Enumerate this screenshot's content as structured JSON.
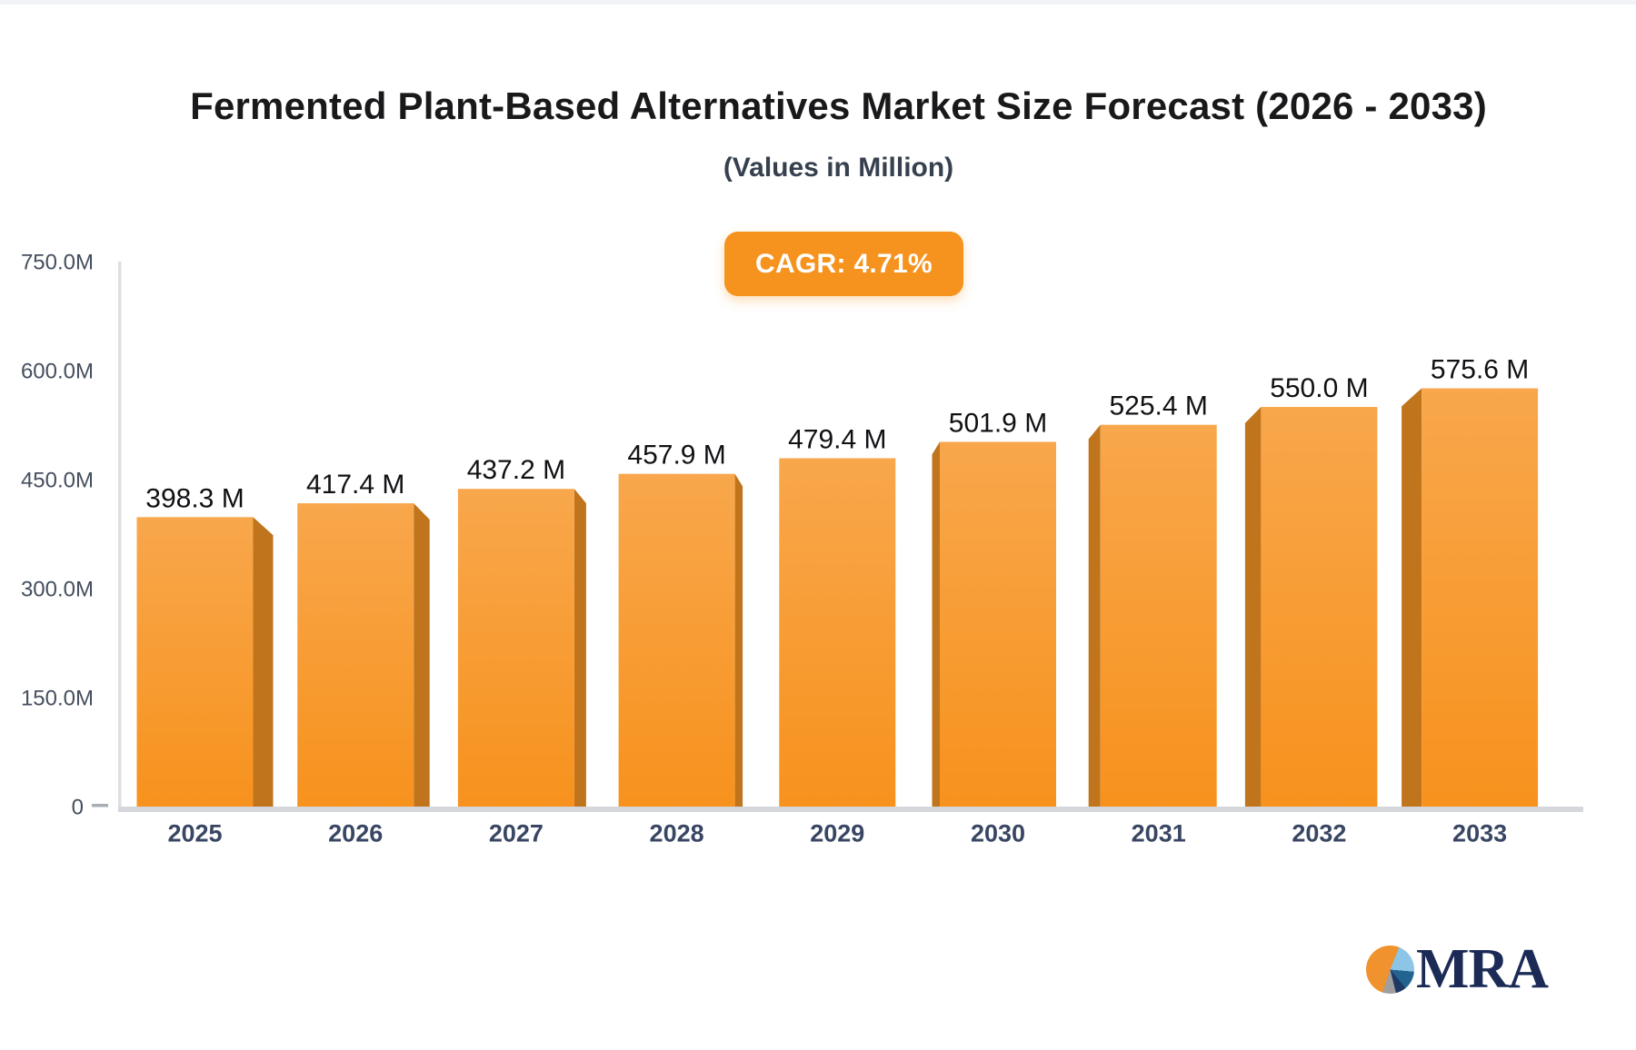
{
  "header": {
    "title": "Fermented Plant-Based Alternatives Market Size Forecast (2026 - 2033)",
    "subtitle": "(Values in Million)",
    "cagr_badge": "CAGR: 4.71%"
  },
  "footer": {
    "logo_text": "MRA"
  },
  "colors": {
    "bar_face_top": "#F8A74C",
    "bar_face_bottom": "#F7921D",
    "bar_side": "#C0741C",
    "badge_bg": "#F6921E",
    "axis_line": "#DEDFE3",
    "baseline": "#D5D7DD",
    "zero_tick": "#A8ADB6",
    "value_label": "#101114",
    "year_label": "#394663",
    "tick_label": "#454F5E",
    "logo_navy": "#1B2B56",
    "logo_orange": "#F0922D",
    "logo_lightblue": "#8CC5E5",
    "logo_midblue": "#23638F",
    "logo_gray": "#A09FA0"
  },
  "chart_data": {
    "type": "bar",
    "title": "Fermented Plant-Based Alternatives Market Size Forecast (2026 - 2033)",
    "subtitle": "(Values in Million)",
    "annotation": "CAGR: 4.71%",
    "categories": [
      "2025",
      "2026",
      "2027",
      "2028",
      "2029",
      "2030",
      "2031",
      "2032",
      "2033"
    ],
    "values": [
      398.3,
      417.4,
      437.2,
      457.9,
      479.4,
      501.9,
      525.4,
      550.0,
      575.6
    ],
    "value_labels": [
      "398.3 M",
      "417.4 M",
      "437.2 M",
      "457.9 M",
      "479.4 M",
      "501.9 M",
      "525.4 M",
      "550.0 M",
      "575.6 M"
    ],
    "unit": "Million",
    "xlabel": "",
    "ylabel": "",
    "ylim": [
      0,
      750
    ],
    "ytick_values": [
      750,
      600,
      450,
      300,
      150,
      0
    ],
    "ytick_labels": [
      "750.0M",
      "600.0M",
      "450.0M",
      "300.0M",
      "150.0M",
      "0"
    ],
    "grid": false,
    "legend": false,
    "bar_style": "3d-perspective-toward-center"
  }
}
